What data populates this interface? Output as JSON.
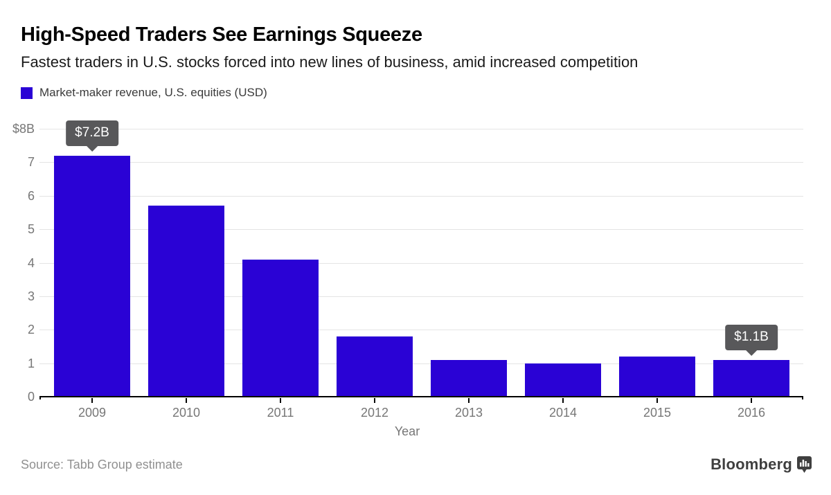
{
  "header": {
    "title": "High-Speed Traders See Earnings Squeeze",
    "subtitle": "Fastest traders in U.S. stocks forced into new lines of business, amid increased competition"
  },
  "legend": {
    "label": "Market-maker revenue, U.S. equities (USD)"
  },
  "chart_data": {
    "type": "bar",
    "title": "Market-maker revenue, U.S. equities (USD)",
    "categories": [
      "2009",
      "2010",
      "2011",
      "2012",
      "2013",
      "2014",
      "2015",
      "2016"
    ],
    "values": [
      7.2,
      5.7,
      4.1,
      1.8,
      1.1,
      1.0,
      1.2,
      1.1
    ],
    "xlabel": "Year",
    "ylabel": "",
    "ylim": [
      0,
      8
    ],
    "yticks": [
      {
        "value": 8,
        "label": "$8B"
      },
      {
        "value": 7,
        "label": "7"
      },
      {
        "value": 6,
        "label": "6"
      },
      {
        "value": 5,
        "label": "5"
      },
      {
        "value": 4,
        "label": "4"
      },
      {
        "value": 3,
        "label": "3"
      },
      {
        "value": 2,
        "label": "2"
      },
      {
        "value": 1,
        "label": "1"
      },
      {
        "value": 0,
        "label": "0"
      }
    ],
    "grid": true,
    "legend_position": "top-left",
    "bar_color": "#2a02d5",
    "tooltip_color": "#58585a",
    "annotations": [
      {
        "index": 0,
        "category": "2009",
        "label": "$7.2B"
      },
      {
        "index": 7,
        "category": "2016",
        "label": "$1.1B"
      }
    ]
  },
  "footer": {
    "source": "Source: Tabb Group estimate",
    "brand": "Bloomberg"
  }
}
